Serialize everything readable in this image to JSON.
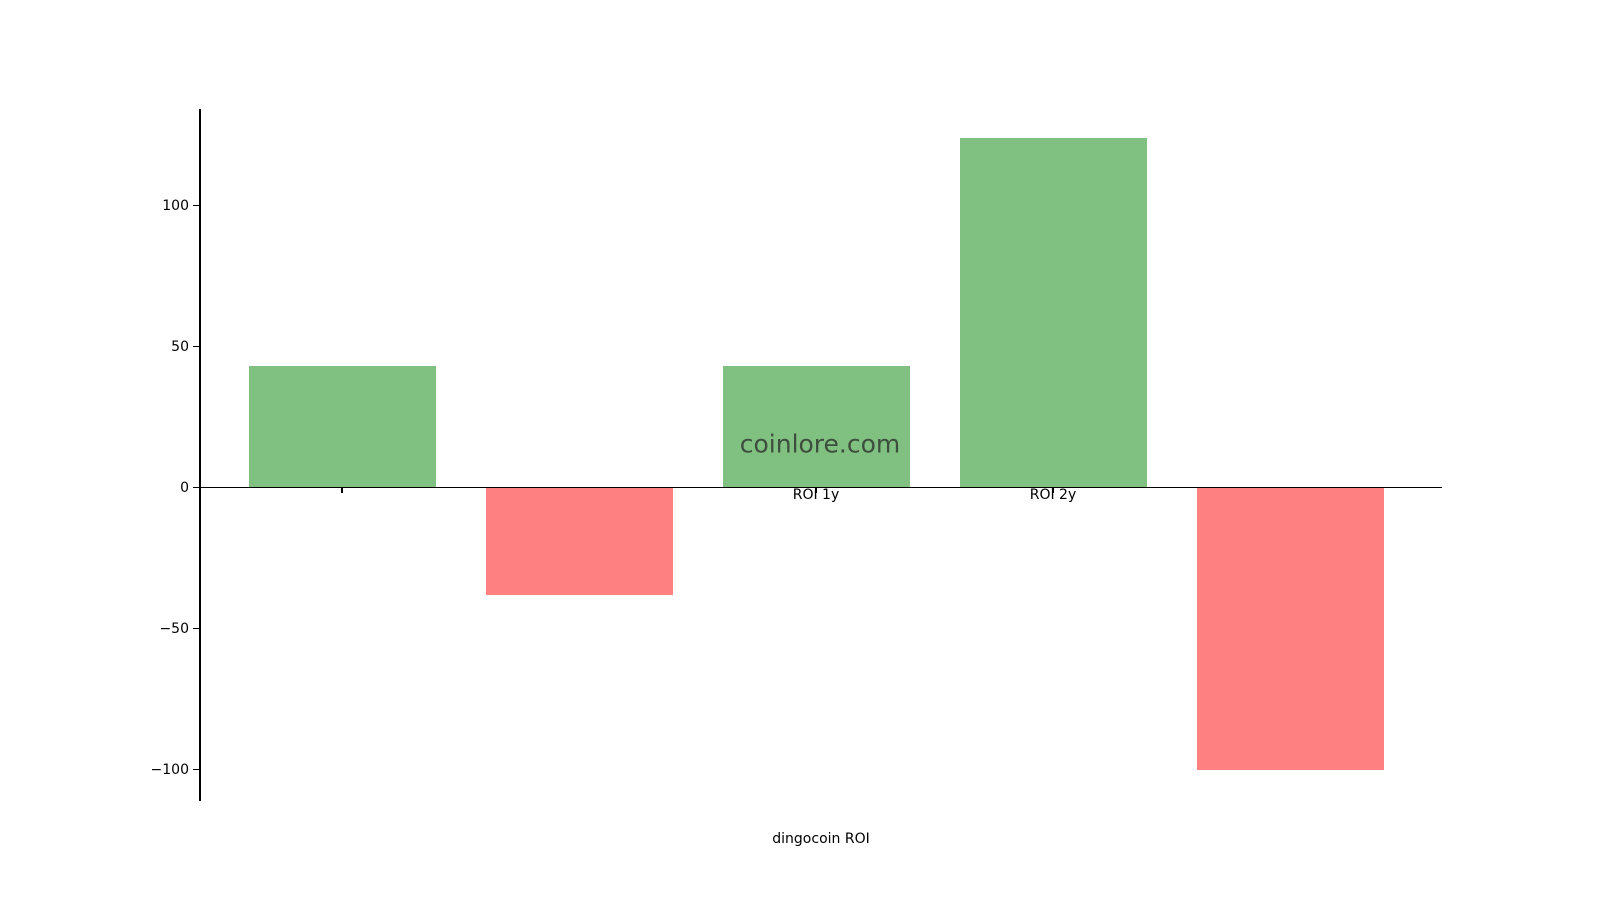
{
  "chart_data": {
    "type": "bar",
    "title": "",
    "xlabel": "dingocoin ROI",
    "ylabel": "",
    "watermark": "coinlore.com",
    "categories": [
      "",
      "",
      "ROI 1y",
      "ROI 2y",
      ""
    ],
    "values": [
      43,
      -38,
      43,
      124,
      -100
    ],
    "colors": [
      "#80c080",
      "#ff8080",
      "#80c080",
      "#80c080",
      "#ff8080"
    ],
    "positive_color": "#80c080",
    "negative_color": "#ff8080",
    "axis_color": "#000000",
    "watermark_color": "#3c3c3c",
    "y_ticks": [
      {
        "value": 100,
        "label": "100"
      },
      {
        "value": 50,
        "label": "50"
      },
      {
        "value": 0,
        "label": "0"
      },
      {
        "value": -50,
        "label": "−50"
      },
      {
        "value": -100,
        "label": "−100"
      }
    ],
    "ylim": [
      -111,
      134.5
    ],
    "grid": false,
    "legend": null
  }
}
